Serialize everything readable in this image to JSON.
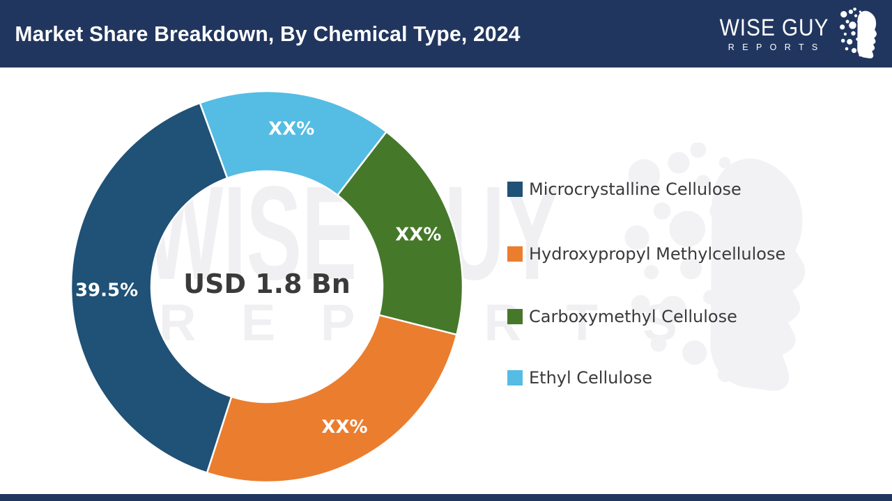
{
  "header": {
    "title": "Market Share Breakdown, By Chemical Type, 2024",
    "logo": {
      "name_line": "WISE GUY",
      "reports_line": "R E P O R T S"
    }
  },
  "watermark": {
    "big_text": "WISE GUY",
    "reports_text": "R E P O R T S"
  },
  "chart_data": {
    "type": "pie",
    "variant": "donut",
    "title": "Market Share Breakdown, By Chemical Type, 2024",
    "center_label": "USD 1.8 Bn",
    "start_angle_deg": 110,
    "direction": "counterclockwise",
    "inner_radius_ratio": 0.59,
    "legend_position": "right",
    "segments": [
      {
        "label": "Microcrystalline Cellulose",
        "display_value": "39.5%",
        "value_pct": 39.5,
        "color": "#205176"
      },
      {
        "label": "Hydroxypropyl Methylcellulose",
        "display_value": "XX%",
        "value_pct": 26.0,
        "color": "#EB7D2F"
      },
      {
        "label": "Carboxymethyl Cellulose",
        "display_value": "XX%",
        "value_pct": 18.5,
        "color": "#46782A"
      },
      {
        "label": "Ethyl Cellulose",
        "display_value": "XX%",
        "value_pct": 16.0,
        "color": "#55BCE4"
      }
    ]
  },
  "colors": {
    "header_bar": "#21365F",
    "footer_bar": "#21365F",
    "text_dark": "#3A3A3A",
    "watermark_gray": "#F0F0F3",
    "slice_label_text": "#FFFFFF"
  }
}
